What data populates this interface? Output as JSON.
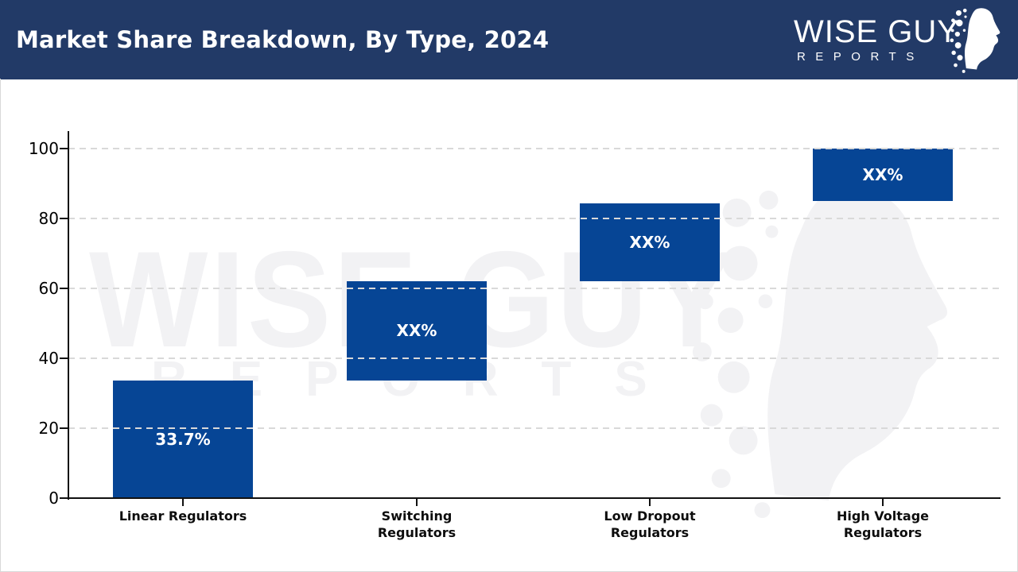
{
  "header": {
    "title": "Market Share Breakdown, By Type, 2024",
    "bg_color": "#223a67"
  },
  "logo": {
    "line1": "WISE GUY",
    "line2": "REPORTS"
  },
  "watermark": {
    "line1": "WISE GUY",
    "line2": "REPORTS"
  },
  "chart_data": {
    "type": "bar",
    "subtype": "waterfall",
    "title": "Market Share Breakdown, By Type, 2024",
    "categories": [
      "Linear Regulators",
      "Switching Regulators",
      "Low Dropout Regulators",
      "High Voltage Regulators"
    ],
    "bars": [
      {
        "category_label": "Linear Regulators",
        "start": 0,
        "end": 33.7,
        "label": "33.7%"
      },
      {
        "category_label": "Switching\nRegulators",
        "start": 33.7,
        "end": 62,
        "label": "XX%"
      },
      {
        "category_label": "Low Dropout\nRegulators",
        "start": 62,
        "end": 84.3,
        "label": "XX%"
      },
      {
        "category_label": "High Voltage\nRegulators",
        "start": 85,
        "end": 100,
        "label": "XX%"
      }
    ],
    "xlabel": "",
    "ylabel": "",
    "ylim": [
      0,
      100
    ],
    "yticks": [
      0,
      20,
      40,
      60,
      80,
      100
    ],
    "grid": "horizontal-dashed",
    "legend": "none",
    "bar_color": "#064595",
    "bar_label_color": "#ffffff",
    "axis_color": "#111111",
    "grid_color": "#d9d9d9"
  }
}
